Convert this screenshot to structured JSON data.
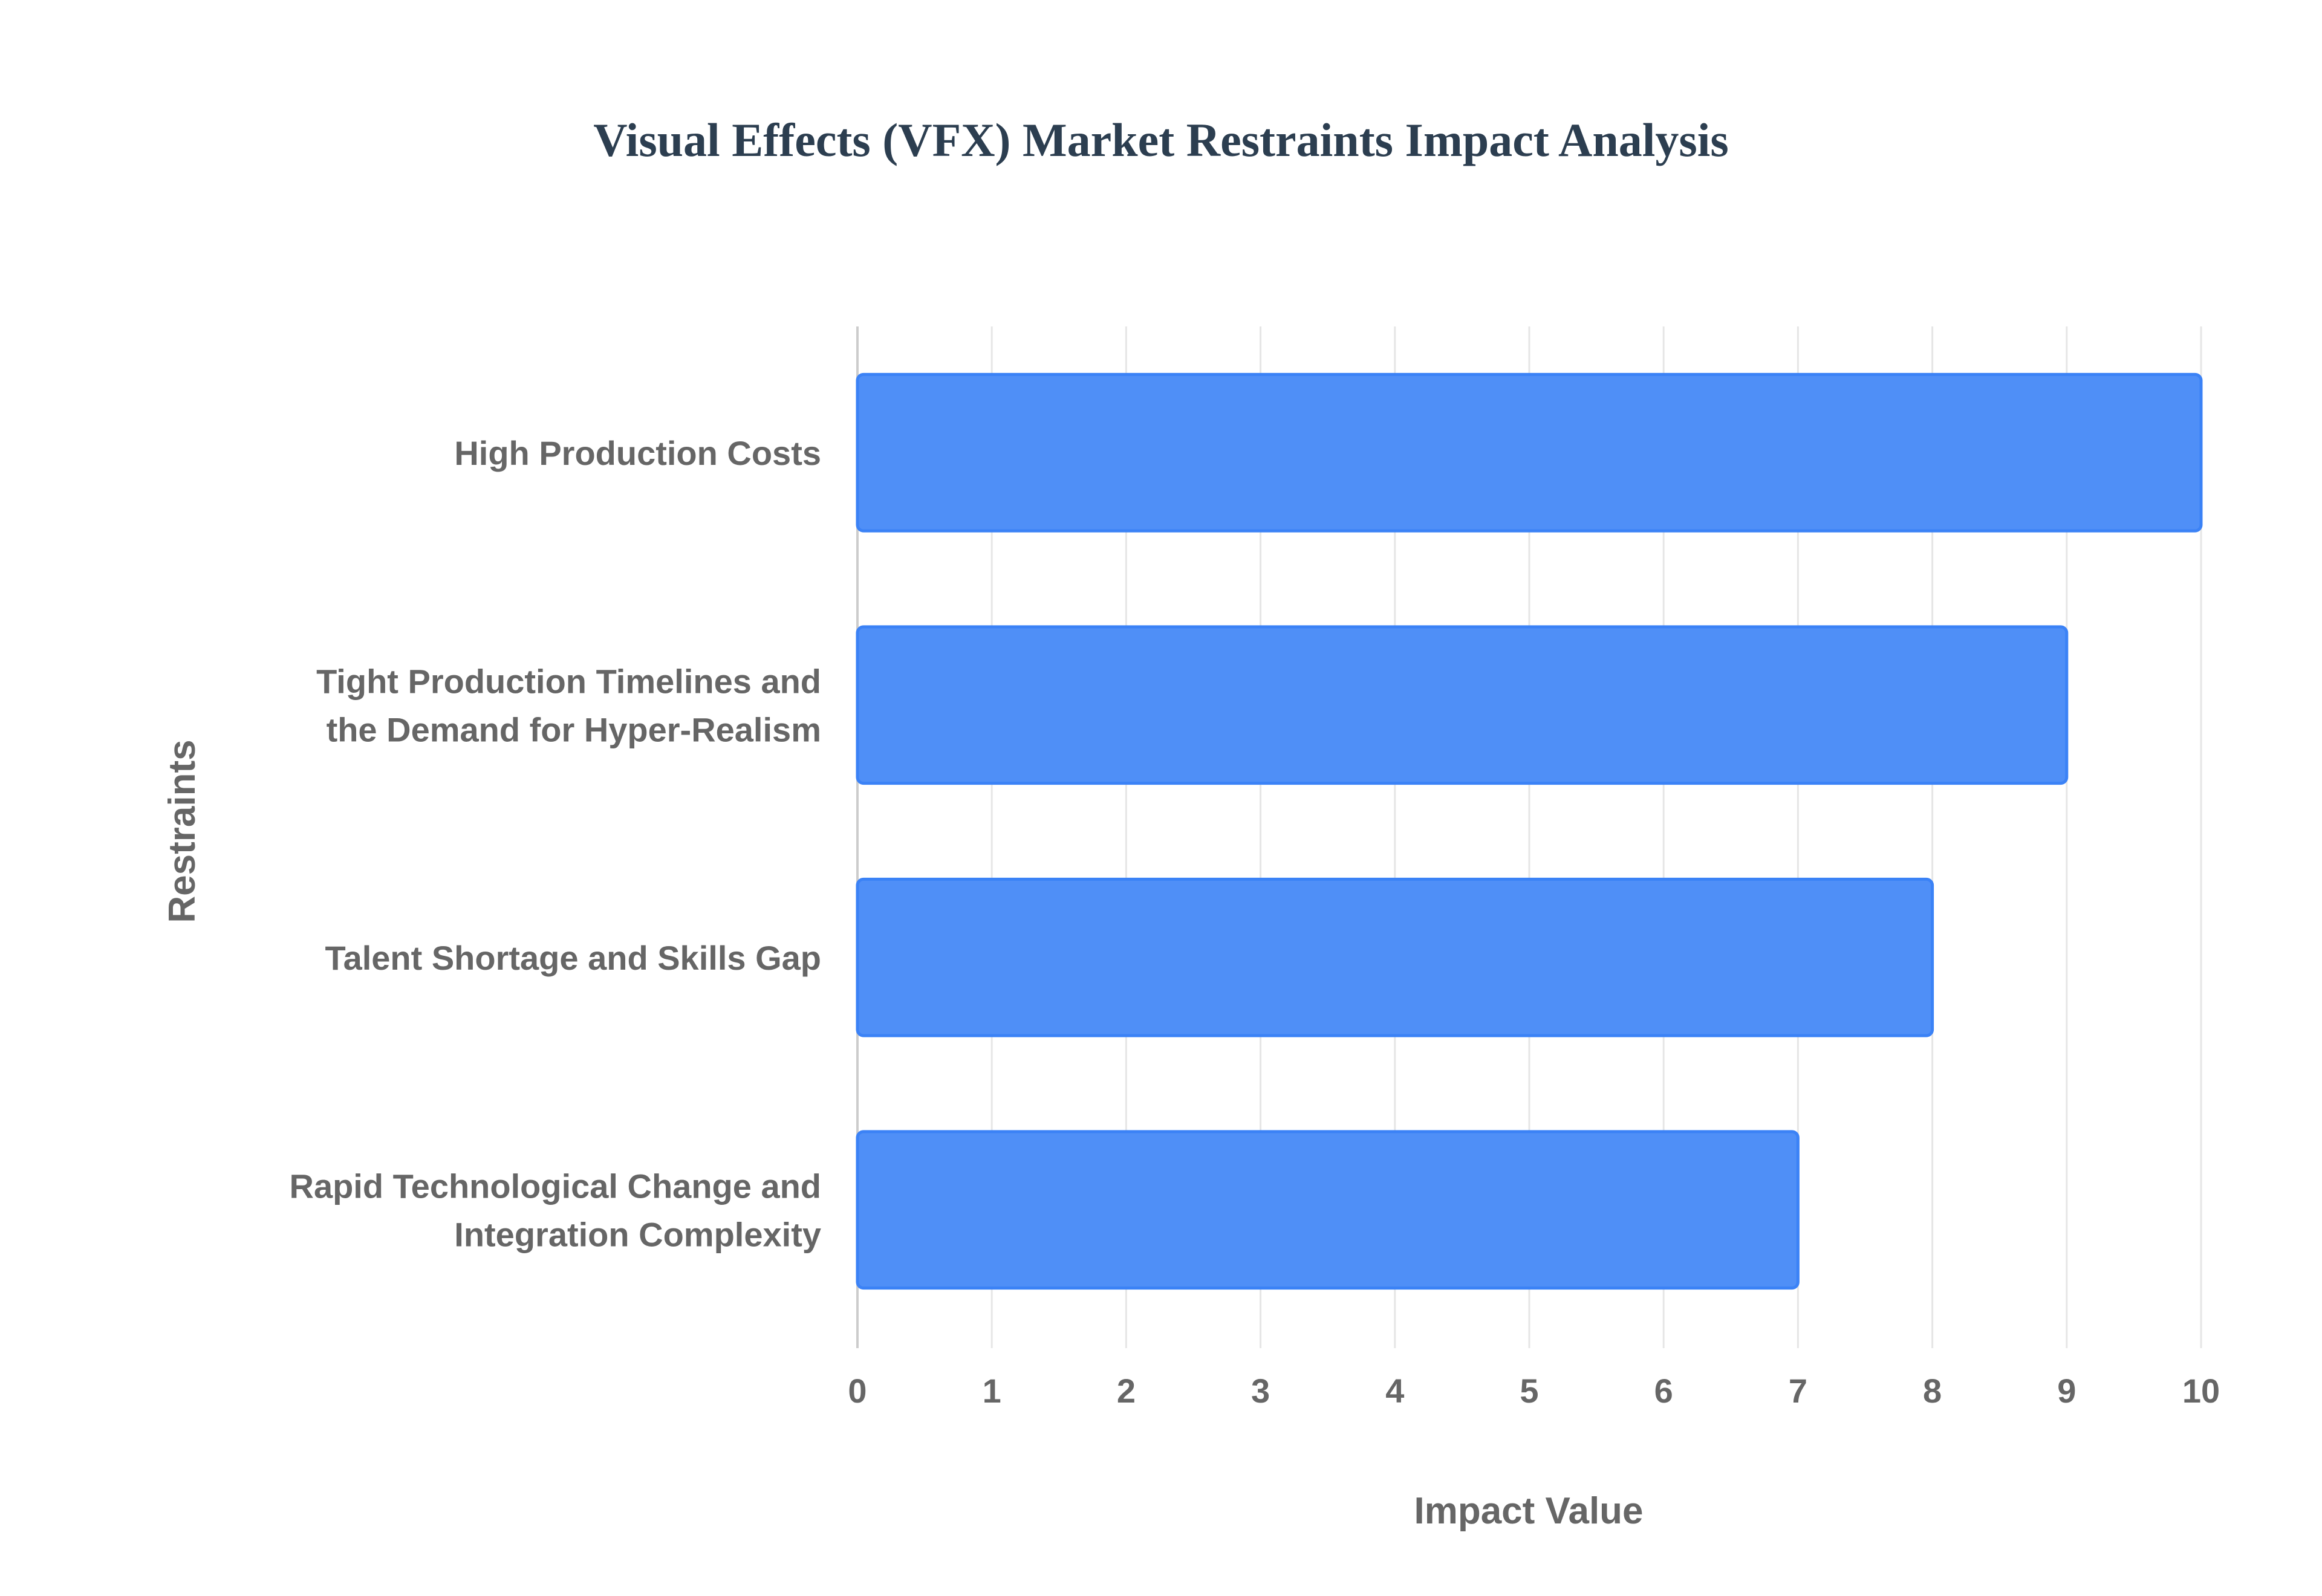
{
  "chart_data": {
    "type": "bar",
    "orientation": "horizontal",
    "title": "Visual Effects (VFX) Market Restraints Impact Analysis",
    "xlabel": "Impact Value",
    "ylabel": "Restraints",
    "categories": [
      [
        "High Production Costs"
      ],
      [
        "Tight Production Timelines and",
        "the Demand for Hyper-Realism"
      ],
      [
        "Talent Shortage and Skills Gap"
      ],
      [
        "Rapid Technological Change and",
        "Integration Complexity"
      ]
    ],
    "values": [
      10,
      9,
      8,
      7
    ],
    "xlim": [
      0,
      10
    ],
    "xticks": [
      "0",
      "1",
      "2",
      "3",
      "4",
      "5",
      "6",
      "7",
      "8",
      "9",
      "10"
    ],
    "grid": true,
    "legend": "none",
    "colors": {
      "bar_fill": "#4f8ff7",
      "bar_border": "#3b82f6",
      "title": "#2c3e50",
      "label": "#666666"
    }
  }
}
